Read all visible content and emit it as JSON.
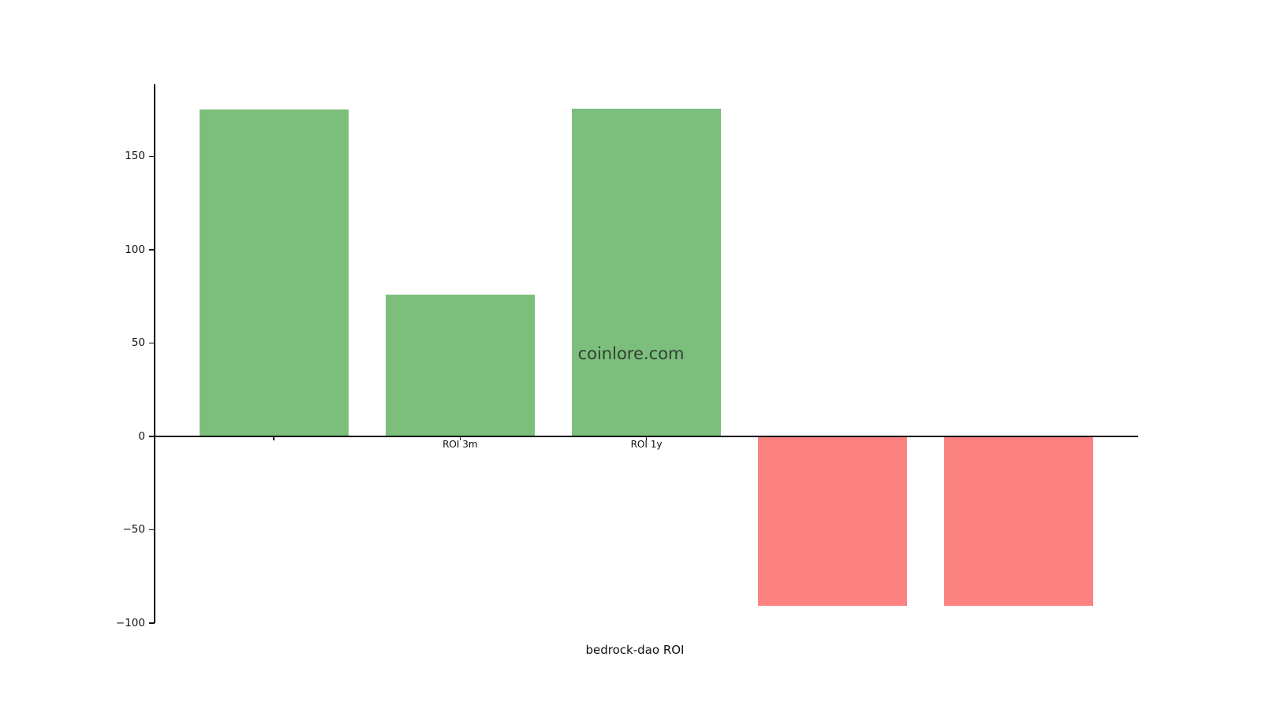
{
  "page": {
    "background_color": "#ffffff"
  },
  "chart_data": {
    "type": "bar",
    "title": "",
    "xlabel": "bedrock-dao ROI",
    "ylabel": "",
    "watermark": "coinlore.com",
    "categories": [
      "",
      "ROI 3m",
      "ROI 1y",
      "",
      ""
    ],
    "values": [
      175,
      76,
      175.5,
      -90.6,
      -90.6
    ],
    "series": [
      {
        "name": "ROI",
        "values": [
          175,
          76,
          175.5,
          -90.6,
          -90.6
        ]
      }
    ],
    "y_ticks": [
      150,
      100,
      50,
      0,
      -50,
      -100
    ],
    "y_tick_labels": [
      "150",
      "100",
      "50",
      "0",
      "−50",
      "−100"
    ],
    "ylim": [
      -100,
      188.6
    ],
    "grid": false,
    "legend": false,
    "positive_color": "#7cbe7c",
    "negative_color": "#fc8181",
    "axis_color": "#111111",
    "text_color": "#111111",
    "watermark_color": "rgba(38,44,38,0.85)"
  }
}
